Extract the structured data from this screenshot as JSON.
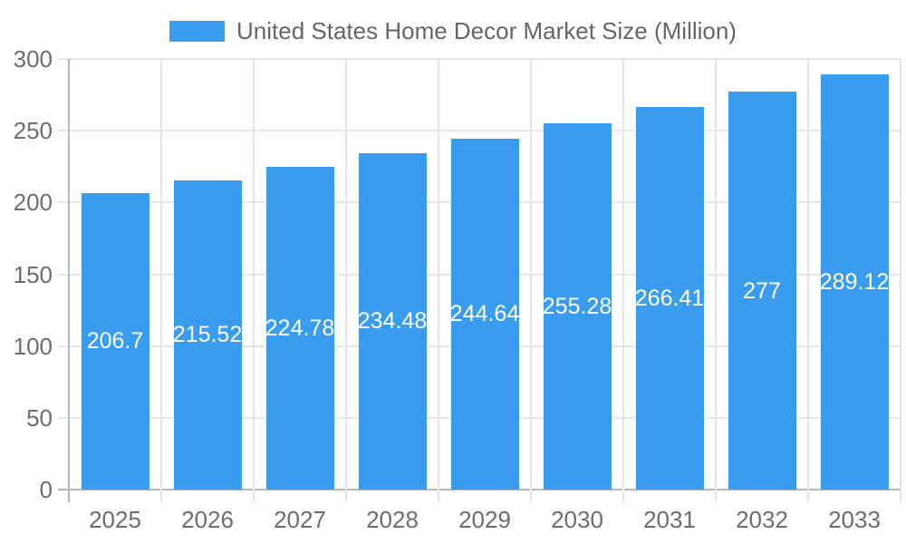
{
  "legend": {
    "label": "United States Home Decor Market Size (Million)"
  },
  "chart_data": {
    "type": "bar",
    "title": "United States Home Decor Market Size (Million)",
    "categories": [
      "2025",
      "2026",
      "2027",
      "2028",
      "2029",
      "2030",
      "2031",
      "2032",
      "2033"
    ],
    "values": [
      206.7,
      215.52,
      224.78,
      234.48,
      244.64,
      255.28,
      266.41,
      277,
      289.12
    ],
    "xlabel": "",
    "ylabel": "",
    "ylim": [
      0,
      300
    ],
    "yticks": [
      0,
      50,
      100,
      150,
      200,
      250,
      300
    ],
    "grid": true,
    "legend_position": "top",
    "value_labels": "inside-center"
  },
  "colors": {
    "bar": "#3A9CEF",
    "grid_line": "#e6e6e6",
    "zero_line": "#b8b8b8",
    "tick_label": "#6e6e6e",
    "legend_text": "#666666",
    "value_label": "#ffffff",
    "background": "#ffffff"
  }
}
